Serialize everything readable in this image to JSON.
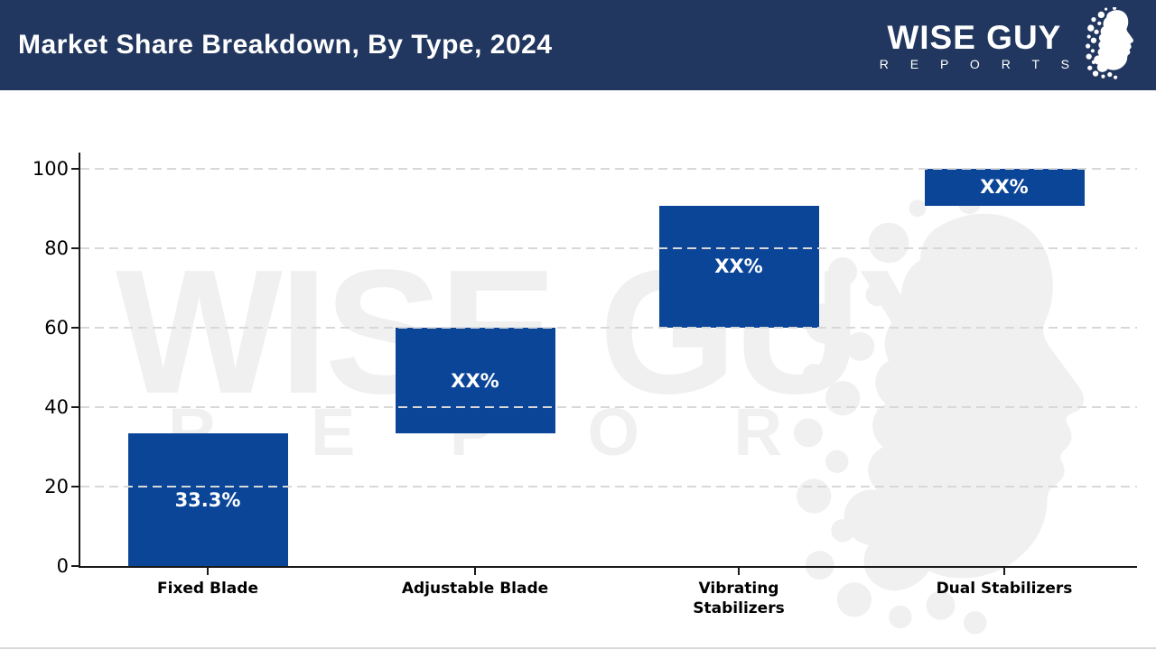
{
  "header": {
    "title": "Market Share Breakdown, By Type, 2024",
    "background_color": "#21375f",
    "logo": {
      "line1": "WISE GUY",
      "line2": "R E P O R T S"
    }
  },
  "watermark": {
    "line1": "WISE GUY",
    "line2": "R E P O R T S"
  },
  "chart_data": {
    "type": "bar",
    "subtype": "waterfall",
    "title": "Market Share Breakdown, By Type, 2024",
    "categories": [
      "Fixed Blade",
      "Adjustable Blade",
      "Vibrating Stabilizers",
      "Dual Stabilizers"
    ],
    "segments": [
      {
        "start": 0,
        "end": 33.3,
        "label": "33.3%"
      },
      {
        "start": 33.3,
        "end": 60,
        "label": "XX%"
      },
      {
        "start": 60,
        "end": 90.7,
        "label": "XX%"
      },
      {
        "start": 90.7,
        "end": 100,
        "label": "XX%"
      }
    ],
    "yticks": [
      0,
      20,
      40,
      60,
      80,
      100
    ],
    "ylim": [
      0,
      104
    ],
    "xlabel": "",
    "ylabel": "",
    "grid": "dashed-horizontal",
    "legend": "none",
    "bar_color": "#0b4598",
    "bar_label_color": "#ffffff",
    "gridline_color": "#d8d8d8"
  }
}
